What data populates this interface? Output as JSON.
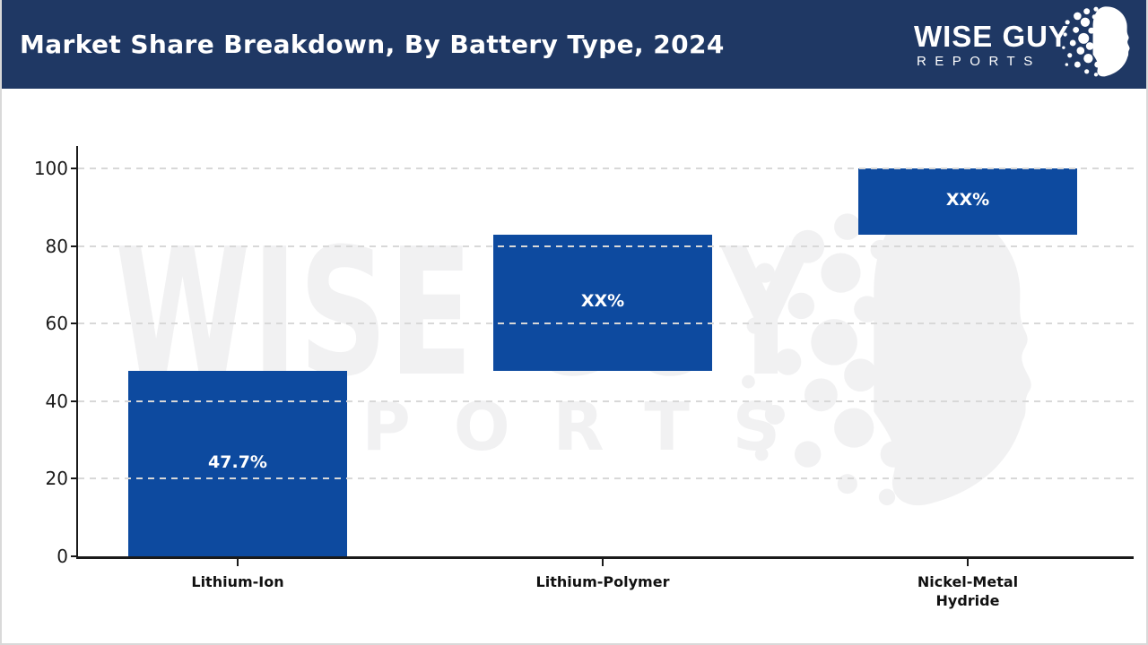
{
  "header": {
    "title": "Market Share Breakdown, By Battery Type, 2024",
    "logo": {
      "line1": "WISE GUY",
      "line2": "REPORTS"
    },
    "bg_color": "#1f3864"
  },
  "watermark": {
    "line1": "WISE GUY",
    "line2": "REPORTS"
  },
  "chart_data": {
    "type": "bar",
    "subtype": "waterfall-floating-bars",
    "title": "Market Share Breakdown, By Battery Type, 2024",
    "categories": [
      "Lithium-Ion",
      "Lithium-Polymer",
      "Nickel-Metal Hydride"
    ],
    "segments": [
      {
        "category": "Lithium-Ion",
        "from": 0,
        "to": 47.7,
        "label": "47.7%"
      },
      {
        "category": "Lithium-Polymer",
        "from": 47.7,
        "to": 83,
        "label": "XX%"
      },
      {
        "category": "Nickel-Metal Hydride",
        "from": 83,
        "to": 100,
        "label": "XX%"
      }
    ],
    "xlabel": "",
    "ylabel": "",
    "ylim": [
      0,
      100
    ],
    "yticks": [
      0,
      20,
      40,
      60,
      80,
      100
    ],
    "grid": "horizontal dashed, drawn above bars",
    "legend": "none",
    "bar_color": "#0d4a9f",
    "bar_label_color": "#ffffff",
    "axis_color": "#1a1a1a",
    "gridline_color": "#d8d8d8"
  }
}
